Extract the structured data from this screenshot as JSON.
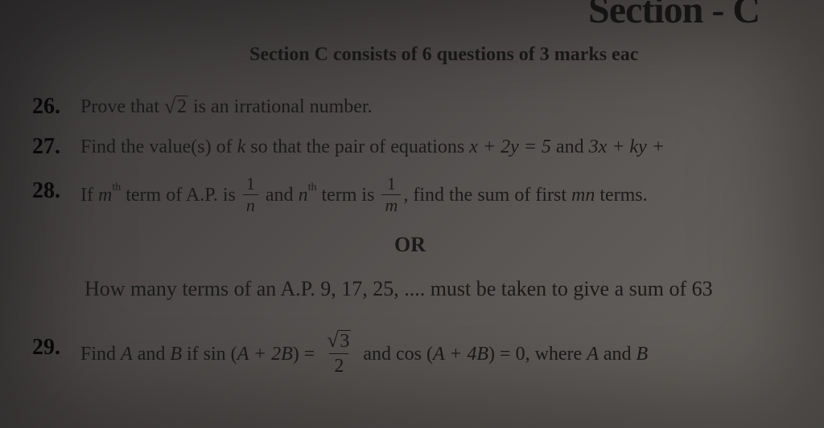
{
  "header": {
    "title_large": "Section - C",
    "subtitle_prefix": "Section C consists of ",
    "subtitle_qcount": "6",
    "subtitle_mid": " questions of ",
    "subtitle_marks": "3",
    "subtitle_suffix": " marks eac"
  },
  "questions": {
    "q26": {
      "number": "26.",
      "text_before": "Prove that ",
      "sqrt_radicand": "2",
      "text_after": " is an irrational number."
    },
    "q27": {
      "number": "27.",
      "text_before": "Find the value(s) of ",
      "var_k": "k",
      "text_mid": " so that the pair of equations ",
      "eq1": "x + 2y = 5",
      "text_and": " and ",
      "eq2": "3x + ky +"
    },
    "q28": {
      "number": "28.",
      "text_1": "If ",
      "var_m": "m",
      "sup_th1": "th",
      "text_2": " term of A.P. is ",
      "frac1_num": "1",
      "frac1_den": "n",
      "text_3": " and ",
      "var_n": "n",
      "sup_th2": "th",
      "text_4": " term is ",
      "frac2_num": "1",
      "frac2_den": "m",
      "text_5": ", find the sum of first ",
      "var_mn": "mn",
      "text_6": " terms."
    },
    "or_label": "OR",
    "q28_alt": {
      "text_1": "How many terms of an A.P. ",
      "sequence": "9, 17, 25, ....",
      "text_2": " must be taken to give a sum of ",
      "value": "63"
    },
    "q29": {
      "number": "29.",
      "text_1": "Find ",
      "var_A1": "A",
      "text_2": " and ",
      "var_B1": "B",
      "text_3": " if sin (",
      "expr1": "A + 2B",
      "text_4": ") = ",
      "frac_num_sqrt": "3",
      "frac_den": "2",
      "text_5": " and cos (",
      "expr2": "A + 4B",
      "text_6": ") = 0, where ",
      "var_A2": "A",
      "text_7": " and ",
      "var_B2": "B"
    }
  }
}
